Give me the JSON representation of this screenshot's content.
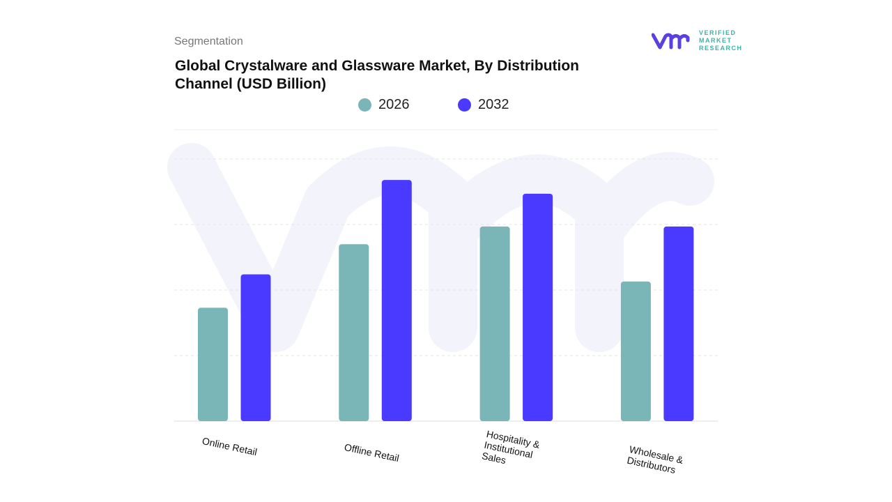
{
  "header": {
    "segment_label": "Segmentation",
    "title": "Global Crystalware and Glassware Market, By Distribution Channel (USD Billion)"
  },
  "logo": {
    "text": [
      "VERIFIED",
      "MARKET",
      "RESEARCH"
    ]
  },
  "colors": {
    "series_2026": "#7ab5b7",
    "series_2032": "#4a3aff",
    "logo_purple": "#5b3fe0",
    "logo_teal": "#3bb3a8"
  },
  "chart_data": {
    "type": "bar",
    "title": "Global Crystalware and Glassware Market, By Distribution Channel (USD Billion)",
    "categories": [
      "Online Retail",
      "Offline Retail",
      "Hospitality & Institutional Sales",
      "Wholesale & Distributors"
    ],
    "series": [
      {
        "name": "2026",
        "values": [
          1.73,
          2.7,
          2.97,
          2.13
        ]
      },
      {
        "name": "2032",
        "values": [
          2.24,
          3.68,
          3.47,
          2.97
        ]
      }
    ],
    "ylim": [
      0,
      4
    ],
    "grid": true,
    "legend_position": "top-center",
    "xlabel": "",
    "ylabel": ""
  }
}
